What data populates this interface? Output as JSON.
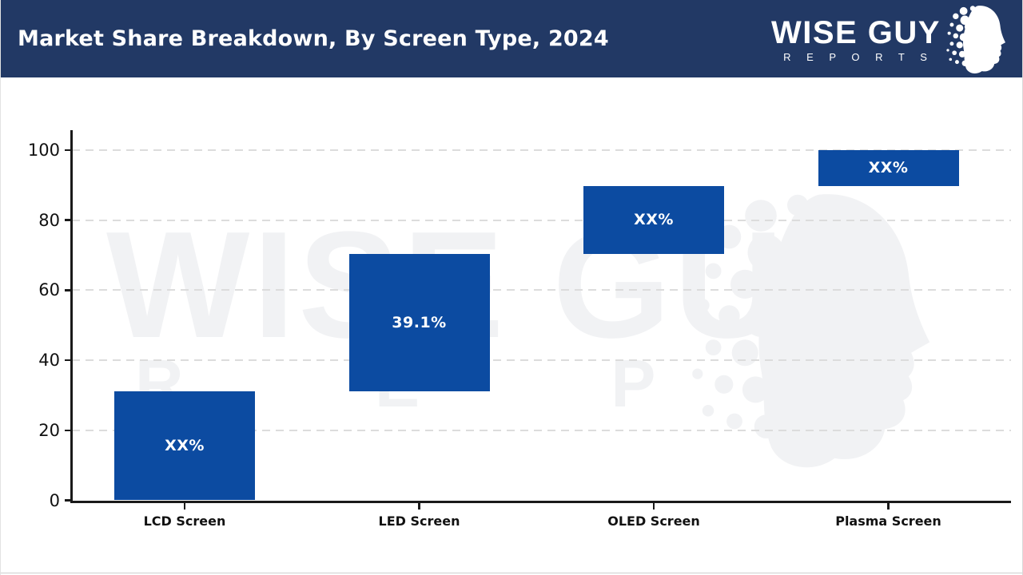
{
  "header": {
    "title": "Market Share Breakdown, By Screen Type, 2024",
    "logo": {
      "line1": "WISE GUY",
      "line2": "R E P O R T S"
    }
  },
  "watermark": {
    "line1": "WISE GUY",
    "line2": "R E P O R T S"
  },
  "colors": {
    "header_bg": "#223965",
    "bar": "#0c4ba1",
    "bar_label": "#ffffff",
    "gridline": "#dcdcdc",
    "axis": "#1a1a1a",
    "watermark": "#f1f2f4"
  },
  "chart_data": {
    "type": "bar",
    "subtype": "floating-waterfall",
    "title": "Market Share Breakdown, By Screen Type, 2024",
    "xlabel": "",
    "ylabel": "",
    "categories": [
      "LCD Screen",
      "LED Screen",
      "OLED Screen",
      "Plasma Screen"
    ],
    "segments": [
      {
        "category": "LCD Screen",
        "start": 0,
        "end": 31.2,
        "value": 31.2,
        "label": "XX%"
      },
      {
        "category": "LED Screen",
        "start": 31.2,
        "end": 70.3,
        "value": 39.1,
        "label": "39.1%"
      },
      {
        "category": "OLED Screen",
        "start": 70.3,
        "end": 89.8,
        "value": 19.5,
        "label": "XX%"
      },
      {
        "category": "Plasma Screen",
        "start": 89.8,
        "end": 100.0,
        "value": 10.2,
        "label": "XX%"
      }
    ],
    "yticks": [
      0,
      20,
      40,
      60,
      80,
      100
    ],
    "ylim": [
      0,
      105
    ],
    "grid": "horizontal-dashed",
    "legend": "none"
  }
}
